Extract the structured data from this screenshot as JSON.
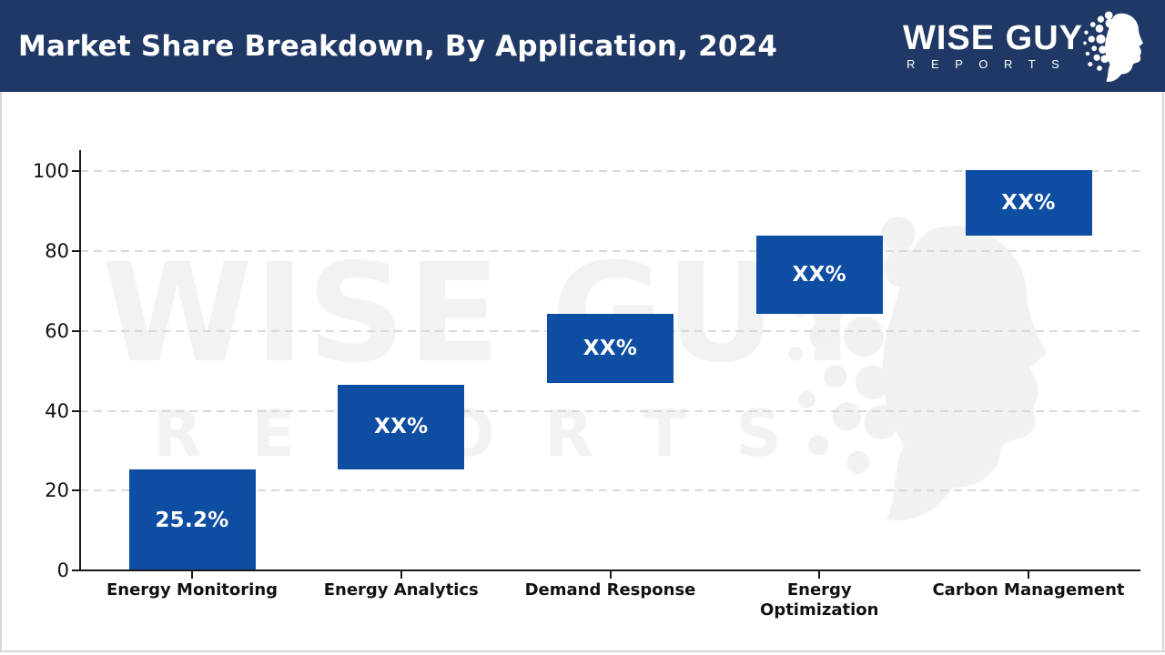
{
  "page": {
    "bg": "#ffffff",
    "border_color": "#d6d6d6"
  },
  "header": {
    "bg": "#1f3865",
    "title": "Market Share Breakdown, By Application, 2024",
    "logo": {
      "line1": "WISE GUY",
      "line2": "R E P O R T S"
    }
  },
  "watermark": {
    "line1": "WISE GUY",
    "line2": "R E P O R T S"
  },
  "chart_data": {
    "type": "bar",
    "subtype": "floating-waterfall",
    "title": "Market Share Breakdown, By Application, 2024",
    "categories": [
      "Energy Monitoring",
      "Energy Analytics",
      "Demand Response",
      "Energy Optimization",
      "Carbon Management"
    ],
    "category_label_lines": [
      [
        "Energy Monitoring"
      ],
      [
        "Energy Analytics"
      ],
      [
        "Demand Response"
      ],
      [
        "Energy",
        "Optimization"
      ],
      [
        "Carbon Management"
      ]
    ],
    "segments": [
      [
        0,
        25.2
      ],
      [
        25.2,
        46.6
      ],
      [
        46.9,
        64.2
      ],
      [
        64.3,
        83.8
      ],
      [
        83.9,
        100.3
      ]
    ],
    "bar_labels": [
      "25.2%",
      "XX%",
      "XX%",
      "XX%",
      "XX%"
    ],
    "yticks": [
      0,
      20,
      40,
      60,
      80,
      100
    ],
    "ylim": [
      0,
      105.3
    ],
    "xlabel": "",
    "ylabel": "",
    "grid": "horizontal-dashed",
    "legend": "none",
    "bar_color": "#0d4da2",
    "bar_label_color": "#ffffff"
  }
}
